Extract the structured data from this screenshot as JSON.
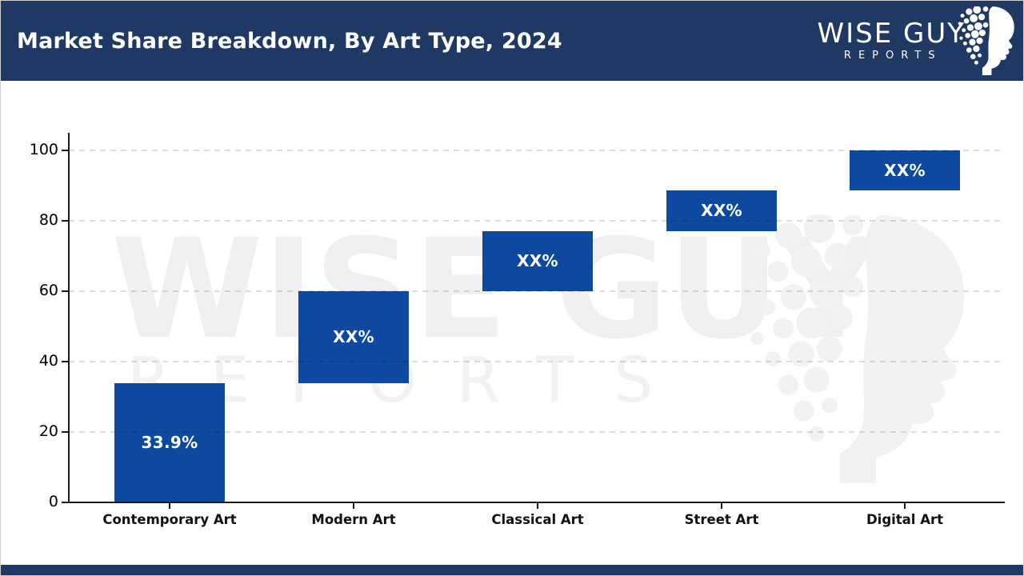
{
  "header": {
    "title": "Market Share Breakdown, By Art Type, 2024"
  },
  "logo": {
    "name": "WISE GUY",
    "tagline": "REPORTS"
  },
  "watermark": {
    "line1": "WISE GUY",
    "line2": "REPORTS"
  },
  "chart_data": {
    "type": "bar",
    "subtype": "waterfall",
    "title": "Market Share Breakdown, By Art Type, 2024",
    "categories": [
      "Contemporary Art",
      "Modern Art",
      "Classical Art",
      "Street Art",
      "Digital Art"
    ],
    "segments": [
      {
        "category": "Contemporary Art",
        "start": 0,
        "end": 33.9,
        "label": "33.9%"
      },
      {
        "category": "Modern Art",
        "start": 33.9,
        "end": 60,
        "label": "XX%"
      },
      {
        "category": "Classical Art",
        "start": 60,
        "end": 77,
        "label": "XX%"
      },
      {
        "category": "Street Art",
        "start": 77,
        "end": 88.5,
        "label": "XX%"
      },
      {
        "category": "Digital Art",
        "start": 88.5,
        "end": 100,
        "label": "XX%"
      }
    ],
    "yticks": [
      0,
      20,
      40,
      60,
      80,
      100
    ],
    "ylim": [
      0,
      105
    ],
    "xlabel": "",
    "ylabel": "",
    "grid": "horizontal-dashed",
    "legend": "none",
    "bar_color": "#0d4a9f",
    "value_label_color": "#ffffff"
  },
  "colors": {
    "header_bg": "#1f3864",
    "footer_bg": "#1f3864",
    "bar": "#0d4a9f",
    "axis": "#1a1a1a",
    "grid_dash": "#d9d9d9",
    "watermark": "#f0f0f3"
  }
}
